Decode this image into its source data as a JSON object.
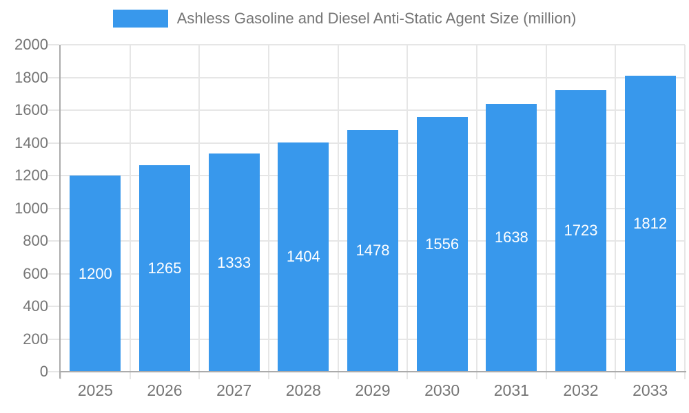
{
  "chart_data": {
    "type": "bar",
    "title": "Ashless Gasoline and Diesel Anti-Static Agent Size (million)",
    "categories": [
      "2025",
      "2026",
      "2027",
      "2028",
      "2029",
      "2030",
      "2031",
      "2032",
      "2033"
    ],
    "values": [
      1200,
      1265,
      1333,
      1404,
      1478,
      1556,
      1638,
      1723,
      1812
    ],
    "series": [
      {
        "name": "Ashless Gasoline and Diesel Anti-Static Agent Size (million)",
        "values": [
          1200,
          1265,
          1333,
          1404,
          1478,
          1556,
          1638,
          1723,
          1812
        ]
      }
    ],
    "xlabel": "",
    "ylabel": "",
    "ylim": [
      0,
      2000
    ],
    "y_ticks": [
      0,
      200,
      400,
      600,
      800,
      1000,
      1200,
      1400,
      1600,
      1800,
      2000
    ],
    "grid": true,
    "legend_position": "top",
    "value_labels_inside_bars": true,
    "colors": {
      "bar": "#3898EC",
      "value_label": "#FFFFFF",
      "axis_text": "#757575",
      "gridline": "#E6E6E6",
      "axis_line": "#ABABAB",
      "background": "#FFFFFF"
    }
  }
}
